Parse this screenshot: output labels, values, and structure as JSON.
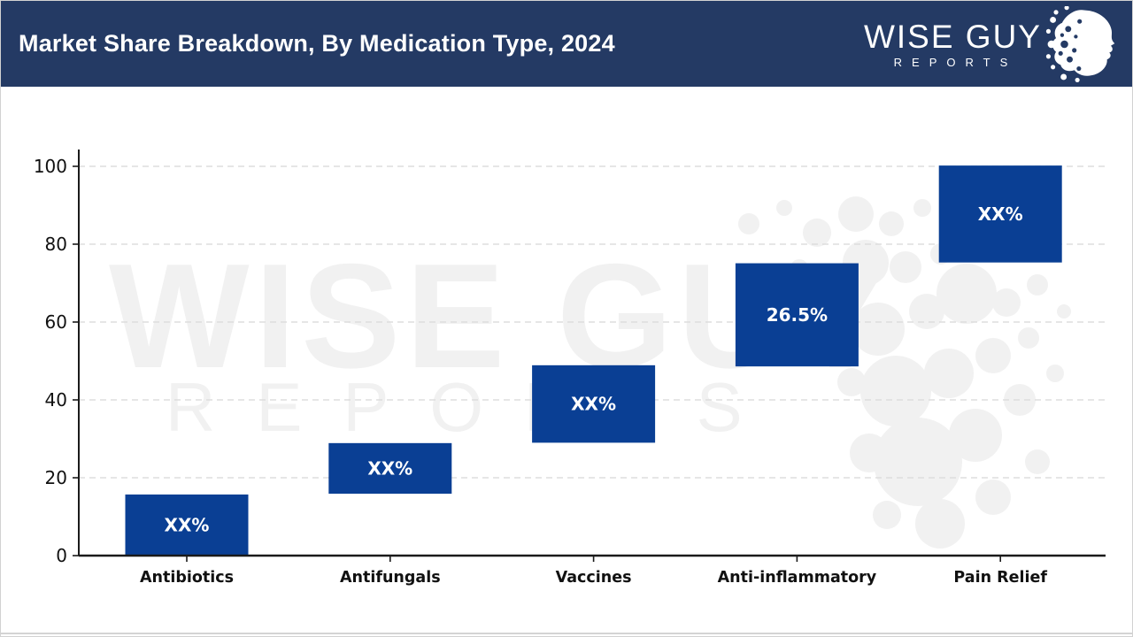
{
  "header": {
    "title": "Market Share Breakdown, By Medication Type, 2024"
  },
  "logo": {
    "line1": "WISE GUY",
    "line2": "REPORTS"
  },
  "watermark": {
    "line1": "WISE GUY",
    "line2": "REPORTS"
  },
  "colors": {
    "header_bg": "#243a64",
    "bar": "#0a3f94",
    "grid": "#dedede",
    "axis": "#1a1a1a",
    "tick_text": "#111111",
    "bar_label_text": "#ffffff",
    "watermark": "#f1f1f1"
  },
  "chart_data": {
    "type": "bar",
    "subtype": "floating-waterfall",
    "title": "Market Share Breakdown, By Medication Type, 2024",
    "xlabel": "",
    "ylabel": "",
    "categories": [
      "Antibiotics",
      "Antifungals",
      "Vaccines",
      "Anti-inflammatory",
      "Pain Relief"
    ],
    "segments": [
      {
        "category": "Antibiotics",
        "start": 0,
        "end": 15.7,
        "label": "XX%"
      },
      {
        "category": "Antifungals",
        "start": 15.9,
        "end": 28.9,
        "label": "XX%"
      },
      {
        "category": "Vaccines",
        "start": 29.0,
        "end": 48.9,
        "label": "XX%"
      },
      {
        "category": "Anti-inflammatory",
        "start": 48.6,
        "end": 75.1,
        "label": "26.5%"
      },
      {
        "category": "Pain Relief",
        "start": 75.3,
        "end": 100.2,
        "label": "XX%"
      }
    ],
    "yticks": [
      0,
      20,
      40,
      60,
      80,
      100
    ],
    "ylim": [
      0,
      105
    ],
    "grid": "horizontal-dashed",
    "legend": "none"
  }
}
